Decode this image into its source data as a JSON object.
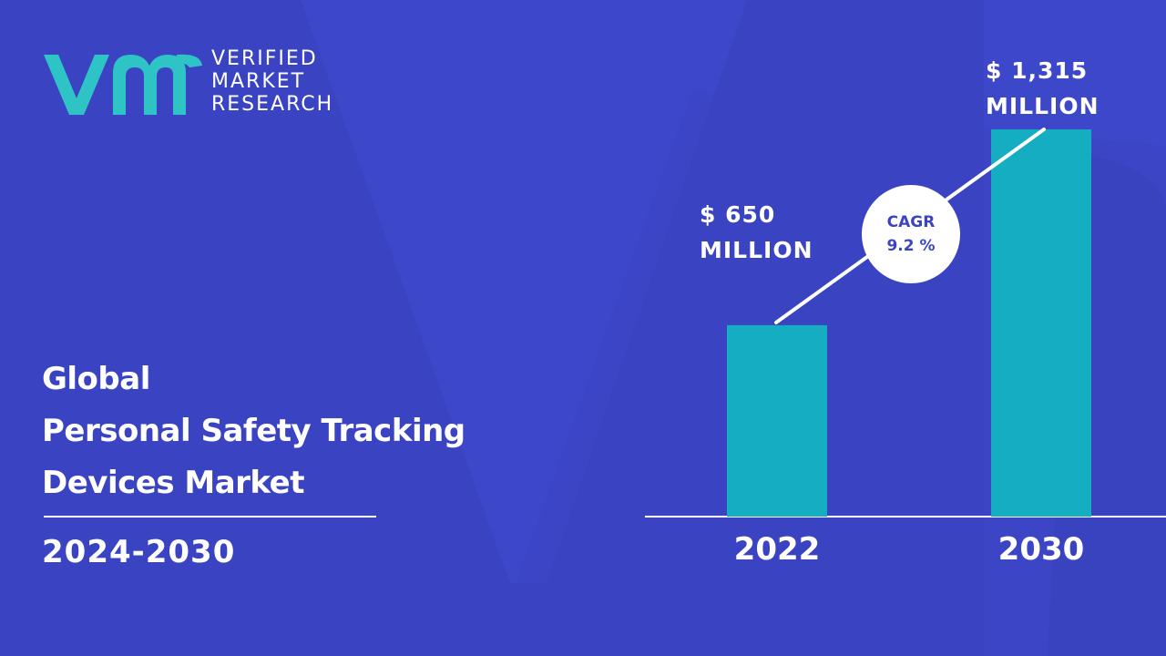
{
  "brand": {
    "line1": "VERIFIED",
    "line2": "MARKET",
    "line3": "RESEARCH",
    "logo_icon": "vmr-logo-icon",
    "logo_color": "#2ec4c6"
  },
  "title": {
    "line1": "Global",
    "line2": "Personal Safety Tracking",
    "line3": "Devices Market"
  },
  "period": "2024-2030",
  "colors": {
    "background": "#3d47c9",
    "bar": "#14adc2",
    "text": "#ffffff",
    "cagr_text": "#3b45c4"
  },
  "chart_data": {
    "type": "bar",
    "categories": [
      "2022",
      "2030"
    ],
    "values": [
      650,
      1315
    ],
    "unit": "MILLION",
    "data_labels": [
      {
        "line1": "$ 650",
        "line2": "MILLION"
      },
      {
        "line1": "$ 1,315",
        "line2": "MILLION"
      }
    ],
    "annotation": {
      "line1": "CAGR",
      "line2": "9.2 %"
    },
    "ylim": [
      0,
      1315
    ],
    "grid": false,
    "legend": "none"
  }
}
